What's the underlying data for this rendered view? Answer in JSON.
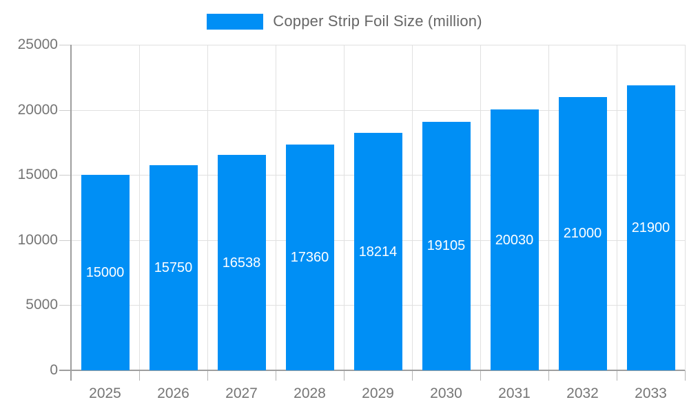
{
  "legend": {
    "label": "Copper Strip Foil Size (million)"
  },
  "chart_data": {
    "type": "bar",
    "title": "Copper Strip Foil Size (million)",
    "categories": [
      "2025",
      "2026",
      "2027",
      "2028",
      "2029",
      "2030",
      "2031",
      "2032",
      "2033"
    ],
    "values": [
      15000,
      15750,
      16538,
      17360,
      18214,
      19105,
      20030,
      21000,
      21900
    ],
    "bar_labels": [
      "15000",
      "15750",
      "16538",
      "17360",
      "18214",
      "19105",
      "20030",
      "21000",
      "21900"
    ],
    "xlabel": "",
    "ylabel": "",
    "ylim": [
      0,
      25000
    ],
    "yticks": [
      0,
      5000,
      10000,
      15000,
      20000,
      25000
    ],
    "ytick_labels": [
      "0",
      "5000",
      "10000",
      "15000",
      "20000",
      "25000"
    ],
    "grid": true,
    "legend_position": "top",
    "colors": {
      "bar": "#008ff5",
      "bar_value_text": "#ffffff",
      "axis_text": "#757575",
      "legend_text": "#666666",
      "gridline": "#e0e0e0",
      "axis_line": "#9e9e9e"
    }
  }
}
